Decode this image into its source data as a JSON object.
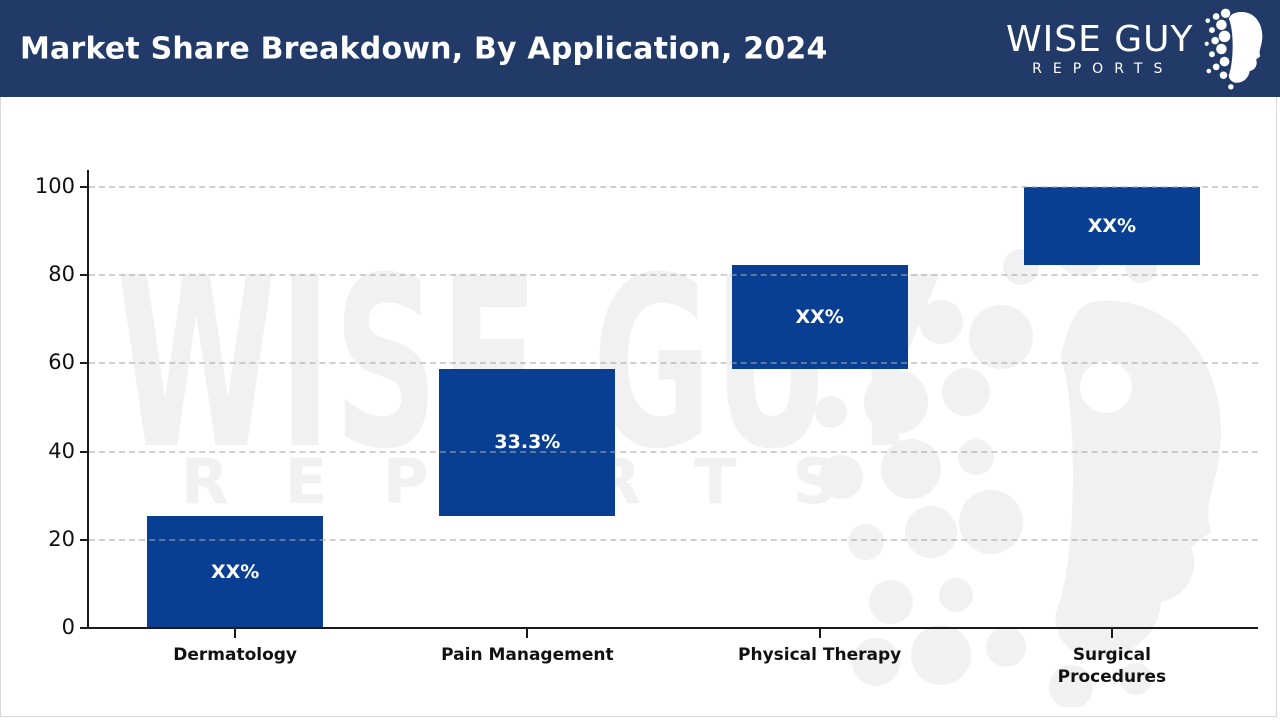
{
  "header": {
    "title": "Market Share Breakdown, By Application, 2024",
    "logo": {
      "name": "WISE GUY",
      "sub": "REPORTS"
    }
  },
  "watermark": {
    "name": "WISE GUY",
    "sub": "REPORTS"
  },
  "chart_data": {
    "type": "bar",
    "variant": "waterfall",
    "title": "Market Share Breakdown, By Application, 2024",
    "categories": [
      "Dermatology",
      "Pain Management",
      "Physical Therapy",
      "Surgical Procedures"
    ],
    "category_lines": [
      [
        "Dermatology"
      ],
      [
        "Pain Management"
      ],
      [
        "Physical Therapy"
      ],
      [
        "Surgical",
        "Procedures"
      ]
    ],
    "segments": [
      {
        "category": "Dermatology",
        "start": 0,
        "end": 25.5,
        "label": "XX%"
      },
      {
        "category": "Pain Management",
        "start": 25.5,
        "end": 58.8,
        "label": "33.3%"
      },
      {
        "category": "Physical Therapy",
        "start": 58.8,
        "end": 82.3,
        "label": "XX%"
      },
      {
        "category": "Surgical Procedures",
        "start": 82.3,
        "end": 100,
        "label": "XX%"
      }
    ],
    "ylim": [
      0,
      100
    ],
    "yticks": [
      0,
      20,
      40,
      60,
      80,
      100
    ],
    "xlabel": "",
    "ylabel": "",
    "grid": "horizontal-dashed",
    "legend": "none",
    "bar_color": "#083f92",
    "bar_label_color": "#ffffff",
    "axis_color": "#1a1a1a",
    "gridline_color": "#d8d8d8",
    "header_color": "#223a68",
    "watermark_color": "#f1f1f2"
  }
}
